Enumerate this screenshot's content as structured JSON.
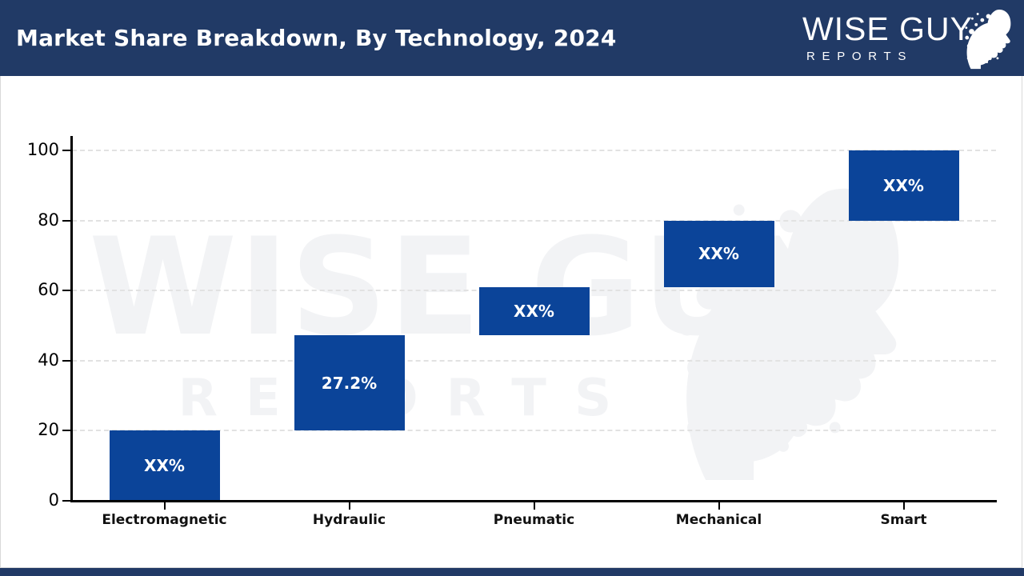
{
  "header": {
    "title": "Market Share Breakdown, By Technology, 2024",
    "logo": {
      "line1": "WISE GUY",
      "line2": "REPORTS"
    }
  },
  "watermark": {
    "line1": "WISE GUY",
    "line2": "REPORTS"
  },
  "colors": {
    "header_bg": "#213a66",
    "bar_blue": "#0b4499",
    "gridline": "#e2e2e2",
    "watermark_gray": "#f2f3f5"
  },
  "chart_data": {
    "type": "bar",
    "subtype": "floating-waterfall",
    "title": "Market Share Breakdown, By Technology, 2024",
    "categories": [
      "Electromagnetic",
      "Hydraulic",
      "Pneumatic",
      "Mechanical",
      "Smart"
    ],
    "bars": [
      {
        "category": "Electromagnetic",
        "start": 0,
        "end": 20,
        "label": "XX%"
      },
      {
        "category": "Hydraulic",
        "start": 20,
        "end": 47.2,
        "label": "27.2%"
      },
      {
        "category": "Pneumatic",
        "start": 47.2,
        "end": 61,
        "label": "XX%"
      },
      {
        "category": "Mechanical",
        "start": 61,
        "end": 80,
        "label": "XX%"
      },
      {
        "category": "Smart",
        "start": 80,
        "end": 100,
        "label": "XX%"
      }
    ],
    "xlabel": "",
    "ylabel": "",
    "ylim": [
      0,
      104
    ],
    "yticks": [
      0,
      20,
      40,
      60,
      80,
      100
    ],
    "grid": true,
    "grid_style": "dashed",
    "legend": false,
    "bar_color": "#0b4499",
    "bar_label_color": "#ffffff"
  }
}
